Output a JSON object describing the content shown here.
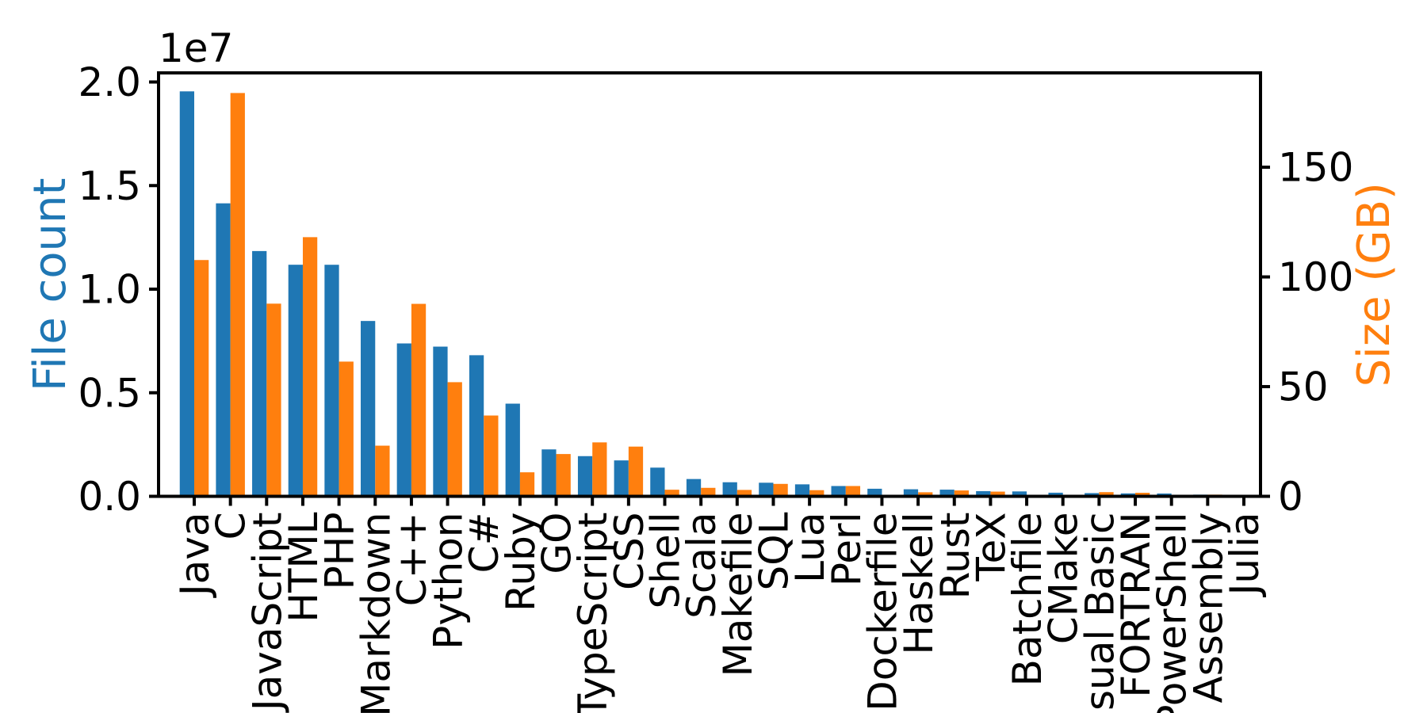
{
  "figure": {
    "background": "#ffffff",
    "spine_color": "#000000",
    "tick_color": "#000000",
    "tick_label_color": "#000000"
  },
  "chart_data": {
    "type": "bar",
    "title": "",
    "xlabel": "",
    "grid": false,
    "legend_position": "none",
    "x_tick_rotation": 90,
    "categories": [
      "Java",
      "C",
      "JavaScript",
      "HTML",
      "PHP",
      "Markdown",
      "C++",
      "Python",
      "C#",
      "Ruby",
      "GO",
      "TypeScript",
      "CSS",
      "Shell",
      "Scala",
      "Makefile",
      "SQL",
      "Lua",
      "Perl",
      "Dockerfile",
      "Haskell",
      "Rust",
      "TeX",
      "Batchfile",
      "CMake",
      "Visual Basic",
      "FORTRAN",
      "PowerShell",
      "Assembly",
      "Julia"
    ],
    "series": [
      {
        "name": "File count",
        "axis": "left",
        "color": "#1f77b4",
        "values": [
          19548190,
          14143113,
          11839883,
          11178557,
          11177610,
          8464626,
          7380520,
          7226626,
          6811652,
          4473331,
          2265436,
          1940406,
          1734406,
          1385648,
          835755,
          679430,
          656671,
          578554,
          497949,
          366505,
          340623,
          322431,
          251015,
          236945,
          175282,
          155652,
          142038,
          136846,
          82905,
          58317
        ]
      },
      {
        "name": "Size (GB)",
        "axis": "right",
        "color": "#ff7f0e",
        "values": [
          107.7,
          183.83,
          87.82,
          118.12,
          61.41,
          23.09,
          87.73,
          52.03,
          36.83,
          10.95,
          19.28,
          24.59,
          22.67,
          3.01,
          3.87,
          2.92,
          5.67,
          2.81,
          4.7,
          0.71,
          1.85,
          2.68,
          2.15,
          0.7,
          0.54,
          1.91,
          1.62,
          0.69,
          0.78,
          0.29
        ]
      }
    ],
    "left_axis": {
      "label": "File count",
      "label_color": "#1f77b4",
      "offset_text": "1e7",
      "tick_values": [
        0,
        5000000,
        10000000,
        15000000,
        20000000
      ],
      "tick_labels": [
        "0.0",
        "0.5",
        "1.0",
        "1.5",
        "2.0"
      ],
      "ylim": [
        0,
        20440000
      ]
    },
    "right_axis": {
      "label": "Size (GB)",
      "label_color": "#ff7f0e",
      "tick_values": [
        0,
        50,
        100,
        150
      ],
      "tick_labels": [
        "0",
        "50",
        "100",
        "150"
      ],
      "ylim": [
        0,
        193
      ]
    }
  }
}
